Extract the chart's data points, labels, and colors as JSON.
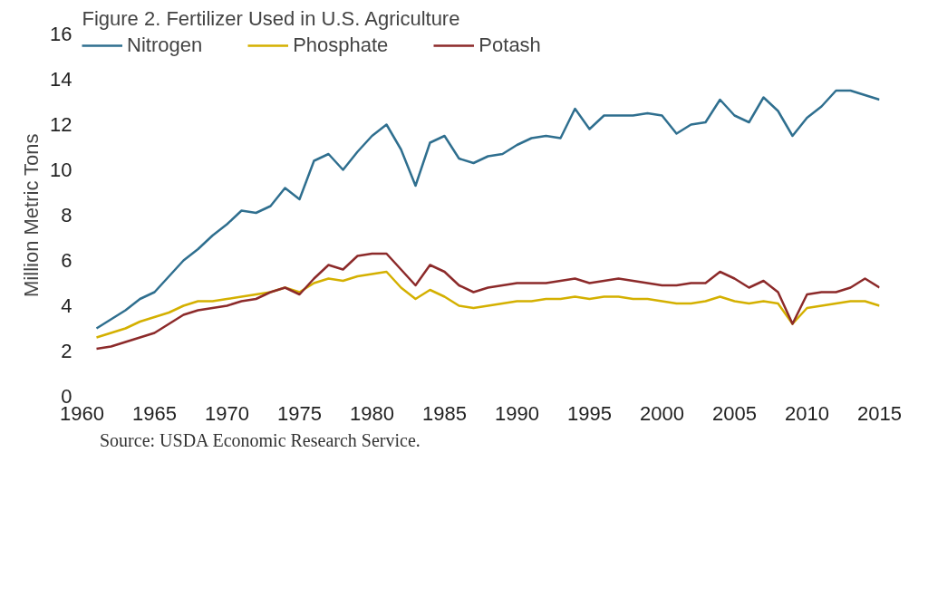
{
  "chart_data": {
    "type": "line",
    "title": "Figure 2. Fertilizer Used in U.S. Agriculture",
    "ylabel": "Million Metric Tons",
    "x": [
      1961,
      1962,
      1963,
      1964,
      1965,
      1966,
      1967,
      1968,
      1969,
      1970,
      1971,
      1972,
      1973,
      1974,
      1975,
      1976,
      1977,
      1978,
      1979,
      1980,
      1981,
      1982,
      1983,
      1984,
      1985,
      1986,
      1987,
      1988,
      1989,
      1990,
      1991,
      1992,
      1993,
      1994,
      1995,
      1996,
      1997,
      1998,
      1999,
      2000,
      2001,
      2002,
      2003,
      2004,
      2005,
      2006,
      2007,
      2008,
      2009,
      2010,
      2011,
      2012,
      2013,
      2014,
      2015
    ],
    "series": [
      {
        "name": "Nitrogen",
        "color": "#2f6f8f",
        "values": [
          3.0,
          3.4,
          3.8,
          4.3,
          4.6,
          5.3,
          6.0,
          6.5,
          7.1,
          7.6,
          8.2,
          8.1,
          8.4,
          9.2,
          8.7,
          10.4,
          10.7,
          10.0,
          10.8,
          11.5,
          12.0,
          10.9,
          9.3,
          11.2,
          11.5,
          10.5,
          10.3,
          10.6,
          10.7,
          11.1,
          11.4,
          11.5,
          11.4,
          12.7,
          11.8,
          12.4,
          12.4,
          12.4,
          12.5,
          12.4,
          11.6,
          12.0,
          12.1,
          13.1,
          12.4,
          12.1,
          13.2,
          12.6,
          11.5,
          12.3,
          12.8,
          13.5,
          13.5,
          13.3,
          13.1
        ]
      },
      {
        "name": "Phosphate",
        "color": "#d4b000",
        "values": [
          2.6,
          2.8,
          3.0,
          3.3,
          3.5,
          3.7,
          4.0,
          4.2,
          4.2,
          4.3,
          4.4,
          4.5,
          4.6,
          4.8,
          4.6,
          5.0,
          5.2,
          5.1,
          5.3,
          5.4,
          5.5,
          4.8,
          4.3,
          4.7,
          4.4,
          4.0,
          3.9,
          4.0,
          4.1,
          4.2,
          4.2,
          4.3,
          4.3,
          4.4,
          4.3,
          4.4,
          4.4,
          4.3,
          4.3,
          4.2,
          4.1,
          4.1,
          4.2,
          4.4,
          4.2,
          4.1,
          4.2,
          4.1,
          3.2,
          3.9,
          4.0,
          4.1,
          4.2,
          4.2,
          4.0
        ]
      },
      {
        "name": "Potash",
        "color": "#8c2a2a",
        "values": [
          2.1,
          2.2,
          2.4,
          2.6,
          2.8,
          3.2,
          3.6,
          3.8,
          3.9,
          4.0,
          4.2,
          4.3,
          4.6,
          4.8,
          4.5,
          5.2,
          5.8,
          5.6,
          6.2,
          6.3,
          6.3,
          5.6,
          4.9,
          5.8,
          5.5,
          4.9,
          4.6,
          4.8,
          4.9,
          5.0,
          5.0,
          5.0,
          5.1,
          5.2,
          5.0,
          5.1,
          5.2,
          5.1,
          5.0,
          4.9,
          4.9,
          5.0,
          5.0,
          5.5,
          5.2,
          4.8,
          5.1,
          4.6,
          3.2,
          4.5,
          4.6,
          4.6,
          4.8,
          5.2,
          4.8
        ]
      }
    ],
    "xlim": [
      1960,
      2015
    ],
    "xticks": [
      1960,
      1965,
      1970,
      1975,
      1980,
      1985,
      1990,
      1995,
      2000,
      2005,
      2010,
      2015
    ],
    "ylim": [
      0,
      16
    ],
    "yticks": [
      0,
      2,
      4,
      6,
      8,
      10,
      12,
      14,
      16
    ],
    "grid": false,
    "legend": "top left",
    "annotations": [
      "Source: USDA Economic Research Service."
    ]
  }
}
